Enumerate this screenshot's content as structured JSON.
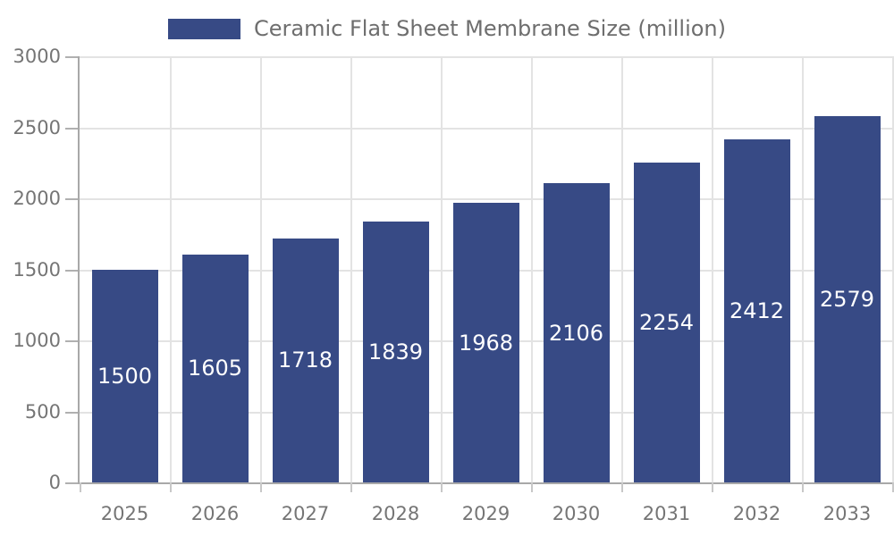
{
  "chart_data": {
    "type": "bar",
    "title": "Ceramic Flat Sheet Membrane Size (million)",
    "categories": [
      "2025",
      "2026",
      "2027",
      "2028",
      "2029",
      "2030",
      "2031",
      "2032",
      "2033"
    ],
    "values": [
      1500,
      1605,
      1718,
      1839,
      1968,
      2106,
      2254,
      2412,
      2579
    ],
    "xlabel": "",
    "ylabel": "",
    "ylim": [
      0,
      3000
    ],
    "yticks": [
      0,
      500,
      1000,
      1500,
      2000,
      2500,
      3000
    ],
    "grid": true,
    "legend_position": "top",
    "bar_color": "#374A85",
    "value_label_color": "#FFFFFF"
  },
  "colors": {
    "background": "#FFFFFF",
    "grid_line": "#E3E3E3",
    "axis_line": "#A8A8A8",
    "y_tick_mark": "#B0B0B0",
    "x_tick_mark": "#C8C8C8",
    "tick_label_text": "#757575",
    "legend_text": "#6E6E6E"
  }
}
